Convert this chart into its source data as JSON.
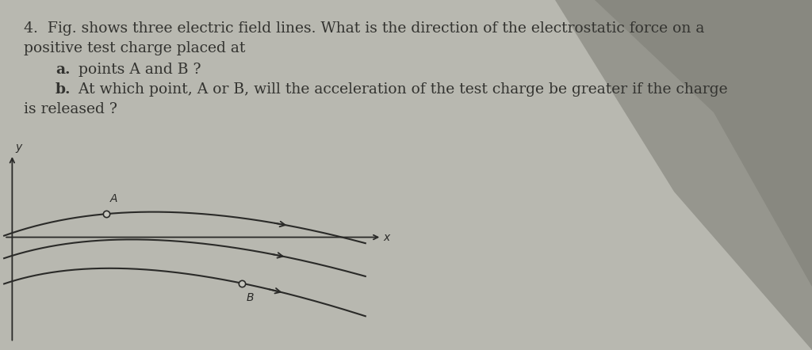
{
  "bg_left": "#b8b8b0",
  "bg_right": "#a0a098",
  "shadow_color": "#888880",
  "text_color": "#333330",
  "curve_color": "#2a2a28",
  "axes_color": "#2a2a28",
  "point_fill": "#c8c8c0",
  "point_edge": "#2a2a28",
  "label_A": "A",
  "label_B": "B",
  "label_x": "x",
  "label_y": "y",
  "font_size": 13.5,
  "line1": "4.  Fig. shows three electric field lines. What is the direction of the electrostatic force on a",
  "line2": "positive test charge placed at",
  "line3a_bold": "a.",
  "line3b": "  points A and B ?",
  "line4a_bold": "b.",
  "line4b": "  At which point, A or B, will the acceleration of the test charge be greater if the charge",
  "line5": "is released ?"
}
